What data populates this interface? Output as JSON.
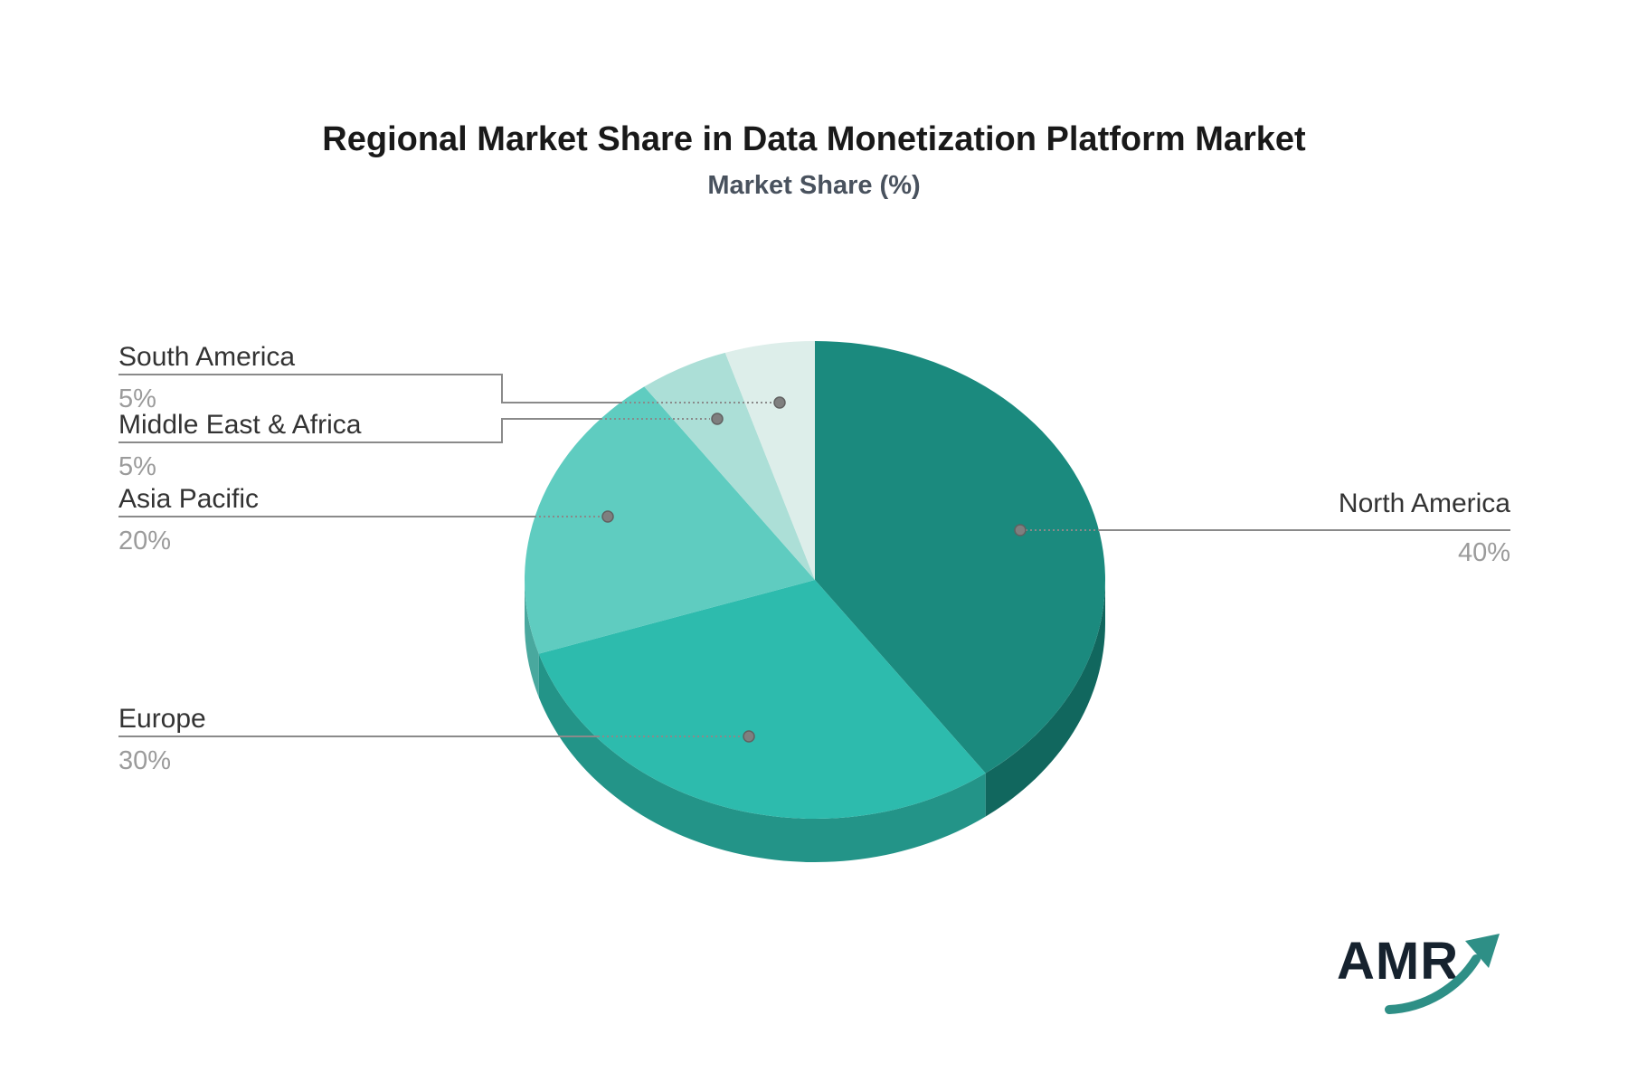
{
  "title": "Regional Market Share in Data Monetization Platform Market",
  "subtitle": "Market Share (%)",
  "logo": {
    "text": "AMR",
    "text_color": "#16222e",
    "arrow_color": "#2e8f86"
  },
  "chart_data": {
    "type": "pie",
    "style": "3d",
    "title": "Regional Market Share in Data Monetization Platform Market",
    "subtitle": "Market Share (%)",
    "unit": "%",
    "start_angle_deg": 0,
    "direction": "clockwise",
    "legend": "none",
    "slices": [
      {
        "label": "North America",
        "value": 40,
        "value_label": "40%",
        "color": "#1b8a7e",
        "side_color": "#11675e",
        "label_side": "right"
      },
      {
        "label": "Europe",
        "value": 30,
        "value_label": "30%",
        "color": "#2dbbad",
        "side_color": "#239488",
        "label_side": "left"
      },
      {
        "label": "Asia Pacific",
        "value": 20,
        "value_label": "20%",
        "color": "#5fccc0",
        "side_color": "#49a89e",
        "label_side": "left"
      },
      {
        "label": "Middle East & Africa",
        "value": 5,
        "value_label": "5%",
        "color": "#acdfd7",
        "side_color": "#8cc4bc",
        "label_side": "left"
      },
      {
        "label": "South America",
        "value": 5,
        "value_label": "5%",
        "color": "#ddeeea",
        "side_color": "#c2d8d4",
        "label_side": "left"
      }
    ],
    "label_style": {
      "name_color": "#333333",
      "value_color": "#9b9b9b",
      "line_color": "#8a8a8a"
    }
  }
}
